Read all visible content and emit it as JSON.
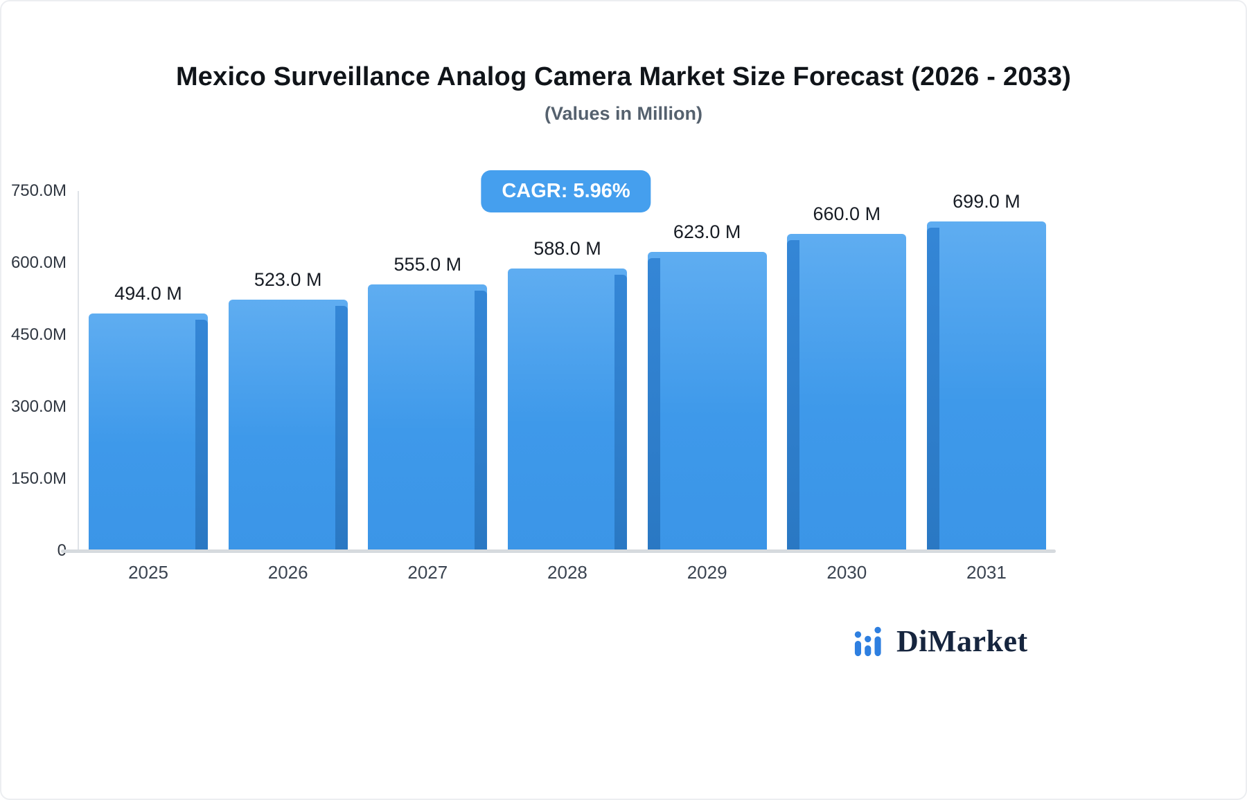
{
  "title": "Mexico Surveillance Analog Camera Market Size Forecast (2026 - 2033)",
  "subtitle": "(Values in Million)",
  "badge": {
    "label": "CAGR: 5.96%"
  },
  "logo": {
    "text": "DiMarket"
  },
  "colors": {
    "badge_bg": "#459fee",
    "bar_top": "#5fadf1",
    "bar_bottom": "#3b95e7",
    "bar_side": "#2a78c3",
    "axis": "#d6dade",
    "title_text": "#101419",
    "subtitle_text": "#55616e",
    "logo_icon": "#2e7fe0",
    "logo_text": "#16253e"
  },
  "chart_data": {
    "type": "bar",
    "title": "Mexico Surveillance Analog Camera Market Size Forecast (2026 - 2033)",
    "subtitle": "(Values in Million)",
    "annotation": "CAGR: 5.96%",
    "categories": [
      "2025",
      "2026",
      "2027",
      "2028",
      "2029",
      "2030",
      "2031"
    ],
    "values": [
      494.0,
      523.0,
      555.0,
      588.0,
      623.0,
      660.0,
      699.0
    ],
    "value_labels": [
      "494.0 M",
      "523.0 M",
      "555.0 M",
      "588.0 M",
      "623.0 M",
      "660.0 M",
      "699.0 M"
    ],
    "xlabel": "",
    "ylabel": "",
    "ylim": [
      0,
      750
    ],
    "grid": false,
    "legend": false,
    "yticks": [
      {
        "value": 0,
        "label": "0"
      },
      {
        "value": 150,
        "label": "150.0M"
      },
      {
        "value": 300,
        "label": "300.0M"
      },
      {
        "value": 450,
        "label": "450.0M"
      },
      {
        "value": 600,
        "label": "600.0M"
      },
      {
        "value": 750,
        "label": "750.0M"
      }
    ]
  }
}
